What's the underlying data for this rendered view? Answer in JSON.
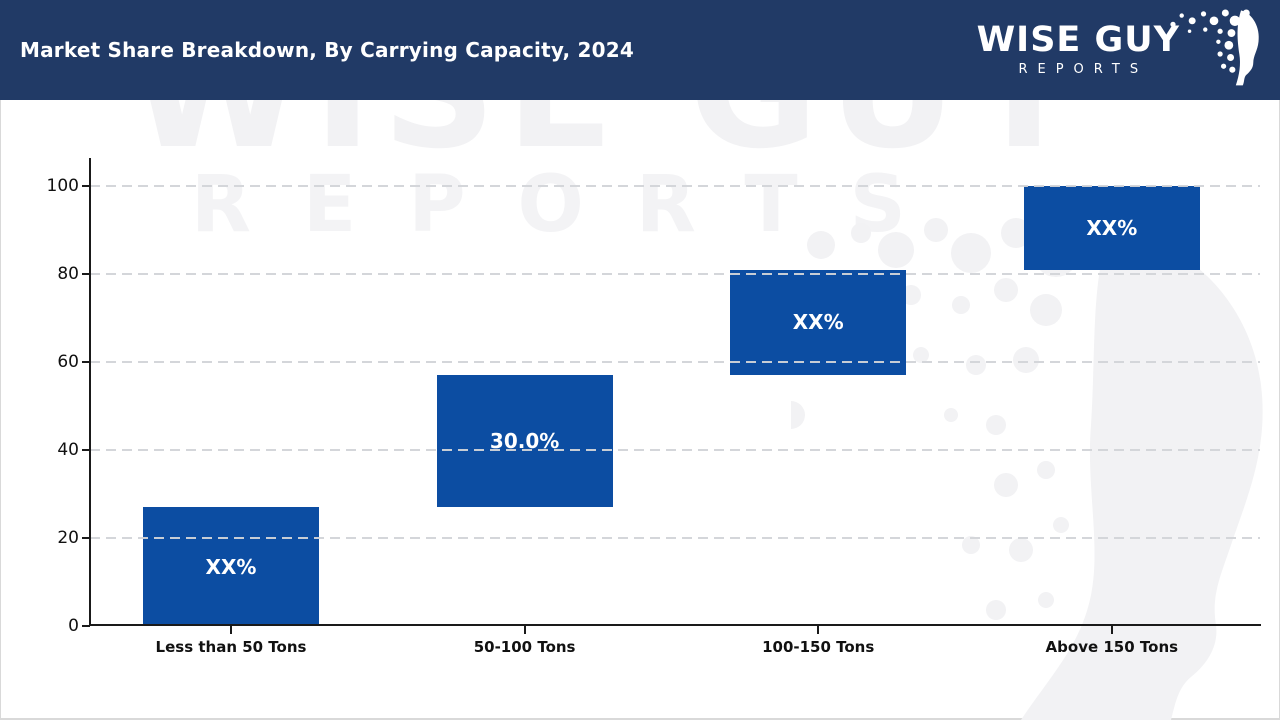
{
  "header": {
    "title": "Market Share Breakdown, By Carrying Capacity, 2024",
    "logo": {
      "line1": "WISE GUY",
      "line2": "REPORTS"
    }
  },
  "watermark": {
    "line1": "WISE GUY",
    "line2": "REPORTS"
  },
  "colors": {
    "header_bg": "#213a66",
    "bar": "#0c4da2",
    "grid": "#d9d9d9",
    "watermark": "#f2f2f4",
    "axis": "#1a1a1a",
    "bar_label_text": "#ffffff"
  },
  "chart_data": {
    "type": "bar",
    "subtype": "floating-waterfall",
    "title": "Market Share Breakdown, By Carrying Capacity, 2024",
    "categories": [
      "Less than 50 Tons",
      "50-100 Tons",
      "100-150 Tons",
      "Above 150 Tons"
    ],
    "bars": [
      {
        "category": "Less than 50 Tons",
        "start": 0,
        "end": 27,
        "label": "XX%"
      },
      {
        "category": "50-100 Tons",
        "start": 27,
        "end": 57,
        "label": "30.0%"
      },
      {
        "category": "100-150 Tons",
        "start": 57,
        "end": 81,
        "label": "XX%"
      },
      {
        "category": "Above 150 Tons",
        "start": 81,
        "end": 100,
        "label": "XX%"
      }
    ],
    "xlabel": "",
    "ylabel": "",
    "yticks": [
      0,
      20,
      40,
      60,
      80,
      100
    ],
    "ylim": [
      0,
      106
    ],
    "grid": "horizontal-dashed",
    "legend": "none"
  }
}
